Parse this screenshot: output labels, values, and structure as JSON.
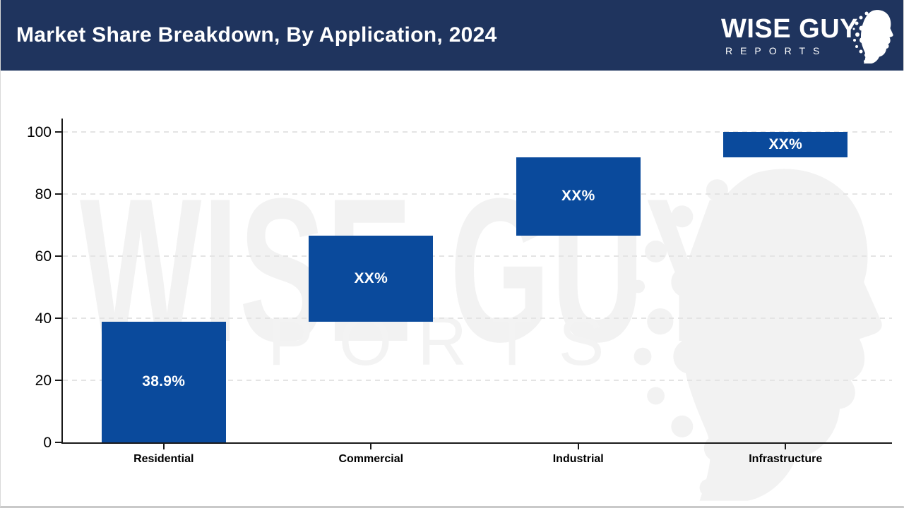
{
  "header": {
    "title": "Market Share Breakdown, By Application, 2024",
    "brand_name": "WISE GUY",
    "brand_subtitle": "REPORTS"
  },
  "watermark": {
    "line1": "WISE GUY",
    "line2": "PORTS"
  },
  "chart_data": {
    "type": "bar",
    "subtype": "waterfall (floating cumulative segments summing to 100%)",
    "title": "Market Share Breakdown, By Application, 2024",
    "categories": [
      "Residential",
      "Commercial",
      "Industrial",
      "Infrastructure"
    ],
    "series": [
      {
        "name": "Market share (%)",
        "segments": [
          {
            "category": "Residential",
            "start": 0,
            "end": 38.9,
            "value": 38.9,
            "label": "38.9%"
          },
          {
            "category": "Commercial",
            "start": 38.9,
            "end": 66.7,
            "value": 27.8,
            "label": "XX%"
          },
          {
            "category": "Industrial",
            "start": 66.7,
            "end": 91.8,
            "value": 25.1,
            "label": "XX%"
          },
          {
            "category": "Infrastructure",
            "start": 91.8,
            "end": 100,
            "value": 8.2,
            "label": "XX%"
          }
        ]
      }
    ],
    "xlabel": "",
    "ylabel": "",
    "ylim": [
      0,
      105
    ],
    "yticks": [
      0,
      20,
      40,
      60,
      80,
      100
    ],
    "grid": "horizontal dashed light-gray",
    "legend": "none",
    "bar_color": "#0a4a9c",
    "bar_label_color": "#ffffff",
    "axis_color": "#1a1a1a"
  },
  "colors": {
    "header_bg": "#1f345e",
    "bar": "#0a4a9c",
    "grid": "#e4e4e4",
    "watermark": "#f2f2f2"
  }
}
